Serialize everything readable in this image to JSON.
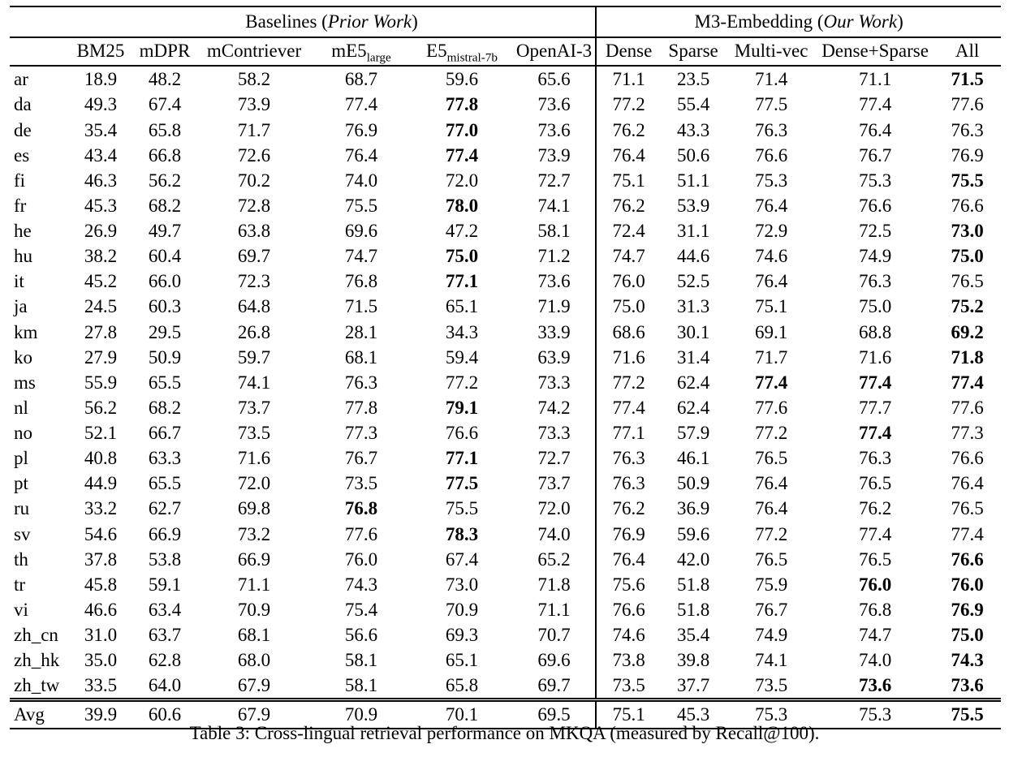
{
  "table": {
    "caption": "Table 3: Cross-lingual retrieval performance on MKQA (measured by Recall@100).",
    "header_groups": [
      {
        "prefix": "Baselines (",
        "italic": "Prior Work",
        "suffix": ")"
      },
      {
        "prefix": "M3-Embedding (",
        "italic": "Our Work",
        "suffix": ")"
      }
    ],
    "columns": [
      {
        "label": "BM25"
      },
      {
        "label": "mDPR"
      },
      {
        "label": "mContriever"
      },
      {
        "label": "mE5",
        "sub": "large"
      },
      {
        "label": "E5",
        "sub": "mistral-7b"
      },
      {
        "label": "OpenAI-3"
      },
      {
        "label": "Dense"
      },
      {
        "label": "Sparse"
      },
      {
        "label": "Multi-vec"
      },
      {
        "label": "Dense+Sparse"
      },
      {
        "label": "All"
      }
    ],
    "rows": [
      {
        "lang": "ar",
        "values": [
          "18.9",
          "48.2",
          "58.2",
          "68.7",
          "59.6",
          "65.6",
          "71.1",
          "23.5",
          "71.4",
          "71.1",
          "71.5"
        ],
        "bold": [
          10
        ]
      },
      {
        "lang": "da",
        "values": [
          "49.3",
          "67.4",
          "73.9",
          "77.4",
          "77.8",
          "73.6",
          "77.2",
          "55.4",
          "77.5",
          "77.4",
          "77.6"
        ],
        "bold": [
          4
        ]
      },
      {
        "lang": "de",
        "values": [
          "35.4",
          "65.8",
          "71.7",
          "76.9",
          "77.0",
          "73.6",
          "76.2",
          "43.3",
          "76.3",
          "76.4",
          "76.3"
        ],
        "bold": [
          4
        ]
      },
      {
        "lang": "es",
        "values": [
          "43.4",
          "66.8",
          "72.6",
          "76.4",
          "77.4",
          "73.9",
          "76.4",
          "50.6",
          "76.6",
          "76.7",
          "76.9"
        ],
        "bold": [
          4
        ]
      },
      {
        "lang": "fi",
        "values": [
          "46.3",
          "56.2",
          "70.2",
          "74.0",
          "72.0",
          "72.7",
          "75.1",
          "51.1",
          "75.3",
          "75.3",
          "75.5"
        ],
        "bold": [
          10
        ]
      },
      {
        "lang": "fr",
        "values": [
          "45.3",
          "68.2",
          "72.8",
          "75.5",
          "78.0",
          "74.1",
          "76.2",
          "53.9",
          "76.4",
          "76.6",
          "76.6"
        ],
        "bold": [
          4
        ]
      },
      {
        "lang": "he",
        "values": [
          "26.9",
          "49.7",
          "63.8",
          "69.6",
          "47.2",
          "58.1",
          "72.4",
          "31.1",
          "72.9",
          "72.5",
          "73.0"
        ],
        "bold": [
          10
        ]
      },
      {
        "lang": "hu",
        "values": [
          "38.2",
          "60.4",
          "69.7",
          "74.7",
          "75.0",
          "71.2",
          "74.7",
          "44.6",
          "74.6",
          "74.9",
          "75.0"
        ],
        "bold": [
          4,
          10
        ]
      },
      {
        "lang": "it",
        "values": [
          "45.2",
          "66.0",
          "72.3",
          "76.8",
          "77.1",
          "73.6",
          "76.0",
          "52.5",
          "76.4",
          "76.3",
          "76.5"
        ],
        "bold": [
          4
        ]
      },
      {
        "lang": "ja",
        "values": [
          "24.5",
          "60.3",
          "64.8",
          "71.5",
          "65.1",
          "71.9",
          "75.0",
          "31.3",
          "75.1",
          "75.0",
          "75.2"
        ],
        "bold": [
          10
        ]
      },
      {
        "lang": "km",
        "values": [
          "27.8",
          "29.5",
          "26.8",
          "28.1",
          "34.3",
          "33.9",
          "68.6",
          "30.1",
          "69.1",
          "68.8",
          "69.2"
        ],
        "bold": [
          10
        ]
      },
      {
        "lang": "ko",
        "values": [
          "27.9",
          "50.9",
          "59.7",
          "68.1",
          "59.4",
          "63.9",
          "71.6",
          "31.4",
          "71.7",
          "71.6",
          "71.8"
        ],
        "bold": [
          10
        ]
      },
      {
        "lang": "ms",
        "values": [
          "55.9",
          "65.5",
          "74.1",
          "76.3",
          "77.2",
          "73.3",
          "77.2",
          "62.4",
          "77.4",
          "77.4",
          "77.4"
        ],
        "bold": [
          8,
          9,
          10
        ]
      },
      {
        "lang": "nl",
        "values": [
          "56.2",
          "68.2",
          "73.7",
          "77.8",
          "79.1",
          "74.2",
          "77.4",
          "62.4",
          "77.6",
          "77.7",
          "77.6"
        ],
        "bold": [
          4
        ]
      },
      {
        "lang": "no",
        "values": [
          "52.1",
          "66.7",
          "73.5",
          "77.3",
          "76.6",
          "73.3",
          "77.1",
          "57.9",
          "77.2",
          "77.4",
          "77.3"
        ],
        "bold": [
          9
        ]
      },
      {
        "lang": "pl",
        "values": [
          "40.8",
          "63.3",
          "71.6",
          "76.7",
          "77.1",
          "72.7",
          "76.3",
          "46.1",
          "76.5",
          "76.3",
          "76.6"
        ],
        "bold": [
          4
        ]
      },
      {
        "lang": "pt",
        "values": [
          "44.9",
          "65.5",
          "72.0",
          "73.5",
          "77.5",
          "73.7",
          "76.3",
          "50.9",
          "76.4",
          "76.5",
          "76.4"
        ],
        "bold": [
          4
        ]
      },
      {
        "lang": "ru",
        "values": [
          "33.2",
          "62.7",
          "69.8",
          "76.8",
          "75.5",
          "72.0",
          "76.2",
          "36.9",
          "76.4",
          "76.2",
          "76.5"
        ],
        "bold": [
          3
        ]
      },
      {
        "lang": "sv",
        "values": [
          "54.6",
          "66.9",
          "73.2",
          "77.6",
          "78.3",
          "74.0",
          "76.9",
          "59.6",
          "77.2",
          "77.4",
          "77.4"
        ],
        "bold": [
          4
        ]
      },
      {
        "lang": "th",
        "values": [
          "37.8",
          "53.8",
          "66.9",
          "76.0",
          "67.4",
          "65.2",
          "76.4",
          "42.0",
          "76.5",
          "76.5",
          "76.6"
        ],
        "bold": [
          10
        ]
      },
      {
        "lang": "tr",
        "values": [
          "45.8",
          "59.1",
          "71.1",
          "74.3",
          "73.0",
          "71.8",
          "75.6",
          "51.8",
          "75.9",
          "76.0",
          "76.0"
        ],
        "bold": [
          9,
          10
        ]
      },
      {
        "lang": "vi",
        "values": [
          "46.6",
          "63.4",
          "70.9",
          "75.4",
          "70.9",
          "71.1",
          "76.6",
          "51.8",
          "76.7",
          "76.8",
          "76.9"
        ],
        "bold": [
          10
        ]
      },
      {
        "lang": "zh_cn",
        "values": [
          "31.0",
          "63.7",
          "68.1",
          "56.6",
          "69.3",
          "70.7",
          "74.6",
          "35.4",
          "74.9",
          "74.7",
          "75.0"
        ],
        "bold": [
          10
        ]
      },
      {
        "lang": "zh_hk",
        "values": [
          "35.0",
          "62.8",
          "68.0",
          "58.1",
          "65.1",
          "69.6",
          "73.8",
          "39.8",
          "74.1",
          "74.0",
          "74.3"
        ],
        "bold": [
          10
        ]
      },
      {
        "lang": "zh_tw",
        "values": [
          "33.5",
          "64.0",
          "67.9",
          "58.1",
          "65.8",
          "69.7",
          "73.5",
          "37.7",
          "73.5",
          "73.6",
          "73.6"
        ],
        "bold": [
          9,
          10
        ]
      }
    ],
    "avg_row": {
      "lang": "Avg",
      "values": [
        "39.9",
        "60.6",
        "67.9",
        "70.9",
        "70.1",
        "69.5",
        "75.1",
        "45.3",
        "75.3",
        "75.3",
        "75.5"
      ],
      "bold": [
        10
      ]
    }
  }
}
